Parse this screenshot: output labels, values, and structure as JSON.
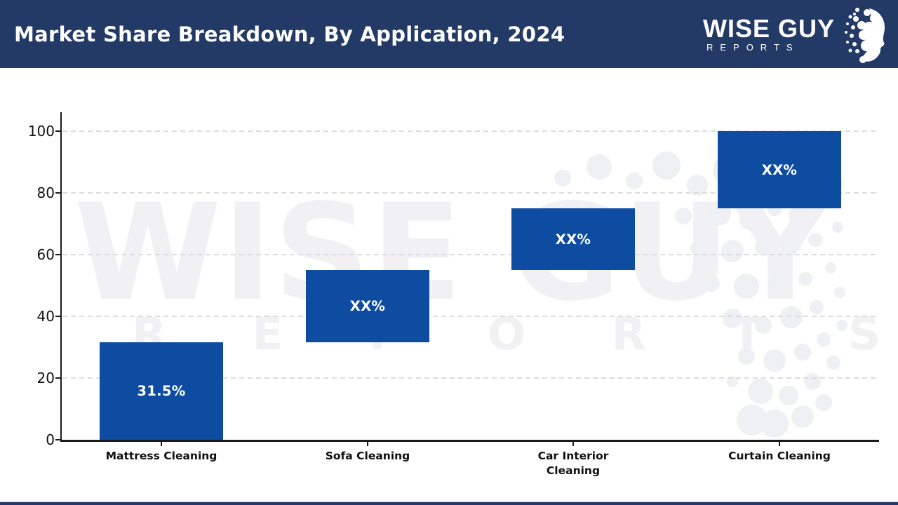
{
  "header": {
    "title": "Market Share Breakdown, By Application, 2024",
    "logo_line1": "WISE GUY",
    "logo_line2": "REPORTS"
  },
  "watermark": {
    "line1": "WISE GUY",
    "line2": "R E P O R T S"
  },
  "chart_data": {
    "type": "bar",
    "subtype": "floating-waterfall",
    "title": "Market Share Breakdown, By Application, 2024",
    "categories": [
      "Mattress Cleaning",
      "Sofa Cleaning",
      "Car Interior Cleaning",
      "Curtain Cleaning"
    ],
    "category_display_lines": [
      [
        "Mattress Cleaning"
      ],
      [
        "Sofa Cleaning"
      ],
      [
        "Car Interior",
        "Cleaning"
      ],
      [
        "Curtain Cleaning"
      ]
    ],
    "segments": [
      {
        "category": "Mattress Cleaning",
        "start": 0,
        "end": 31.5,
        "label": "31.5%"
      },
      {
        "category": "Sofa Cleaning",
        "start": 31.5,
        "end": 55,
        "label": "XX%"
      },
      {
        "category": "Car Interior Cleaning",
        "start": 55,
        "end": 75,
        "label": "XX%"
      },
      {
        "category": "Curtain Cleaning",
        "start": 75,
        "end": 100,
        "label": "XX%"
      }
    ],
    "y_ticks": [
      0,
      20,
      40,
      60,
      80,
      100
    ],
    "ylim": [
      0,
      106
    ],
    "xlabel": "",
    "ylabel": "",
    "grid": "horizontal-dashed",
    "legend": "none",
    "bar_color": "#0d4ca1",
    "bar_label_color": "#ffffff"
  },
  "colors": {
    "header_bg": "#233a66",
    "footer_bg": "#233a66",
    "bar": "#0d4ca1",
    "axis": "#1a1a1a",
    "grid": "#dcdcdc",
    "watermark": "#f1f1f4",
    "page_bg": "#ffffff"
  }
}
